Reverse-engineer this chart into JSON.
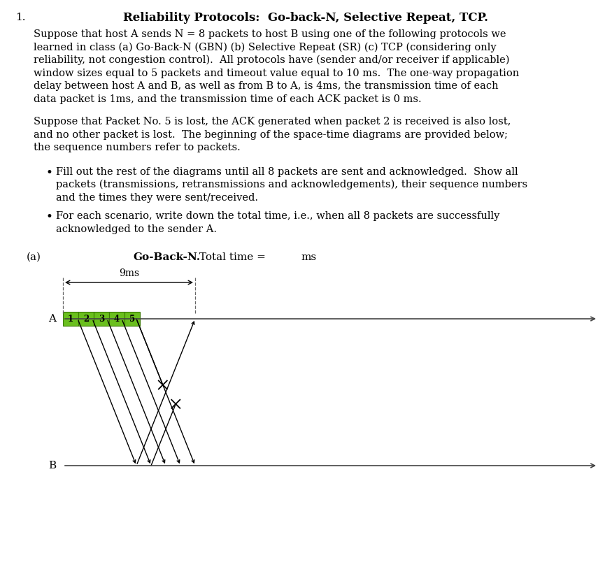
{
  "title": "Reliability Protocols:  Go-back-N, Selective Repeat, TCP.",
  "para1_lines": [
    "Suppose that host A sends N = 8 packets to host B using one of the following protocols we",
    "learned in class (a) Go-Back-N (GBN) (b) Selective Repeat (SR) (c) TCP (considering only",
    "reliability, not congestion control).  All protocols have (sender and/or receiver if applicable)",
    "window sizes equal to 5 packets and timeout value equal to 10 ms.  The one-way propagation",
    "delay between host A and B, as well as from B to A, is 4ms, the transmission time of each",
    "data packet is 1ms, and the transmission time of each ACK packet is 0 ms."
  ],
  "para2_lines": [
    "Suppose that Packet No. 5 is lost, the ACK generated when packet 2 is received is also lost,",
    "and no other packet is lost.  The beginning of the space-time diagrams are provided below;",
    "the sequence numbers refer to packets."
  ],
  "bullet1_lines": [
    "Fill out the rest of the diagrams until all 8 packets are sent and acknowledged.  Show all",
    "packets (transmissions, retransmissions and acknowledgements), their sequence numbers",
    "and the times they were sent/received."
  ],
  "bullet2_lines": [
    "For each scenario, write down the total time, i.e., when all 8 packets are successfully",
    "acknowledged to the sender A."
  ],
  "part_a_label": "(a)",
  "part_a_bold": "Go-Back-N.",
  "part_a_normal": " Total time =",
  "part_a_unit": "ms",
  "number_label": "1.",
  "diagram_label_9ms": "9ms",
  "window_labels": [
    "1",
    "2",
    "3",
    "4",
    "5"
  ],
  "host_A_label": "A",
  "host_B_label": "B",
  "bg_color": "#ffffff",
  "text_color": "#000000",
  "green_color": "#6abf1e",
  "green_border": "#3a7a00",
  "timeline_color": "#444444",
  "packet_line_color": "#000000",
  "dashed_line_color": "#666666"
}
